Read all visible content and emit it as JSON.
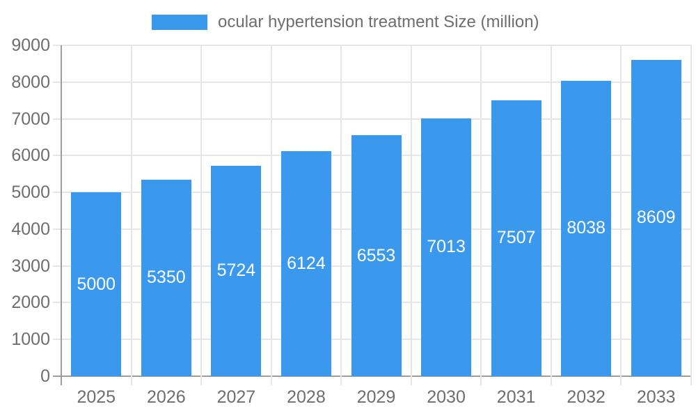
{
  "legend": {
    "label": "ocular hypertension treatment Size (million)"
  },
  "chart_data": {
    "type": "bar",
    "title": "",
    "series_name": "ocular hypertension treatment Size (million)",
    "categories": [
      "2025",
      "2026",
      "2027",
      "2028",
      "2029",
      "2030",
      "2031",
      "2032",
      "2033"
    ],
    "values": [
      5000,
      5350,
      5724,
      6124,
      6553,
      7013,
      7507,
      8038,
      8609
    ],
    "xlabel": "",
    "ylabel": "",
    "ylim": [
      0,
      9000
    ],
    "ytick_step": 1000,
    "ytick_labels": [
      "0",
      "1000",
      "2000",
      "3000",
      "4000",
      "5000",
      "6000",
      "7000",
      "8000",
      "9000"
    ],
    "grid": true,
    "legend_position": "top",
    "value_label_position": "inside-center"
  },
  "colors": {
    "bar": "#3a99ec",
    "grid_light": "#e6e6e6",
    "axis": "#9e9e9e",
    "tick_text": "#6e6e6e",
    "legend_text": "#6e6e6e",
    "value_label_text": "#ffffff",
    "background": "#ffffff"
  }
}
